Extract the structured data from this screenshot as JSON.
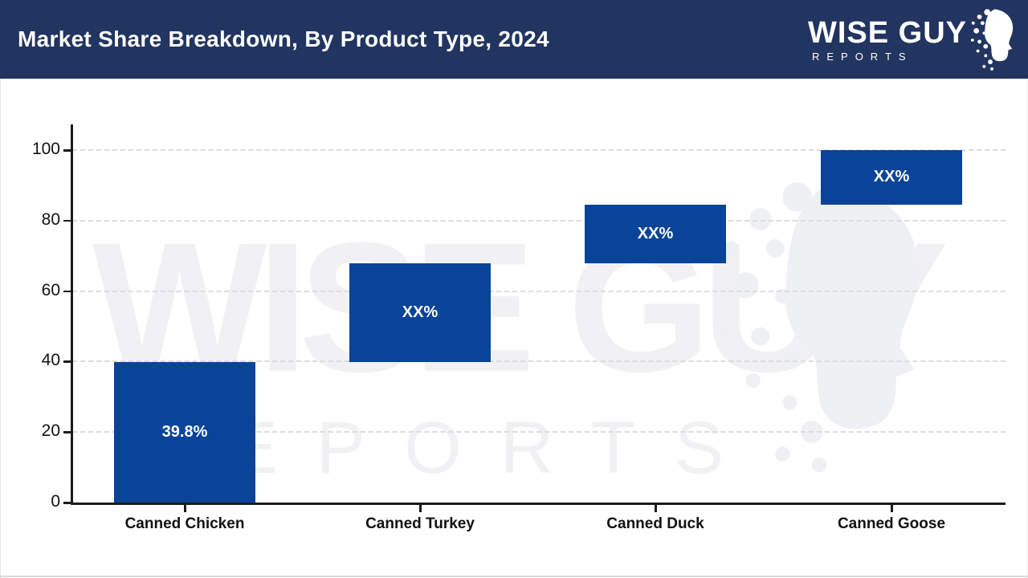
{
  "header": {
    "title": "Market Share Breakdown, By Product Type, 2024",
    "logo": {
      "name": "WISE GUY",
      "subtitle": "REPORTS"
    }
  },
  "watermark": {
    "line1": "WISE GUY",
    "line2": "REPORTS"
  },
  "chart_data": {
    "type": "bar",
    "subtype": "floating-waterfall-bars",
    "title": "Market Share Breakdown, By Product Type, 2024",
    "categories": [
      "Canned Chicken",
      "Canned Turkey",
      "Canned Duck",
      "Canned Goose"
    ],
    "bars": [
      {
        "category": "Canned Chicken",
        "start": 0,
        "end": 39.8,
        "label": "39.8%"
      },
      {
        "category": "Canned Turkey",
        "start": 39.8,
        "end": 67.9,
        "label": "XX%"
      },
      {
        "category": "Canned Duck",
        "start": 67.9,
        "end": 84.6,
        "label": "XX%"
      },
      {
        "category": "Canned Goose",
        "start": 84.6,
        "end": 100,
        "label": "XX%"
      }
    ],
    "y_ticks": [
      0,
      20,
      40,
      60,
      80,
      100
    ],
    "ylim": [
      0,
      105
    ],
    "xlabel": "",
    "ylabel": "",
    "grid": "horizontal-dashed",
    "legend": "none",
    "bar_color": "#0a4499",
    "bar_label_color": "#ffffff"
  }
}
